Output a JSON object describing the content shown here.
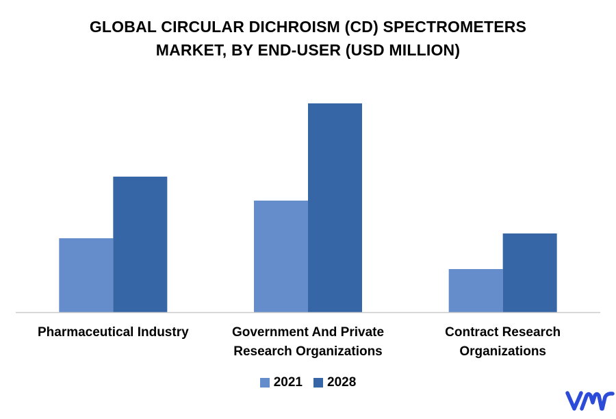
{
  "chart_data": {
    "type": "bar",
    "title_lines": [
      "GLOBAL CIRCULAR DICHROISM (CD) SPECTROMETERS",
      "MARKET, BY END-USER (USD MILLION)"
    ],
    "categories": [
      [
        "Pharmaceutical Industry"
      ],
      [
        "Government And Private",
        "Research Organizations"
      ],
      [
        "Contract Research",
        "Organizations"
      ]
    ],
    "series": [
      {
        "name": "2021",
        "color": "#658ccb",
        "values": [
          108,
          163,
          63
        ]
      },
      {
        "name": "2028",
        "color": "#3766a6",
        "values": [
          198,
          305,
          115
        ]
      }
    ],
    "ylim": [
      0,
      330
    ],
    "grid": false,
    "legend_position": "bottom-center"
  },
  "logo": {
    "icon": "vmr-logo-icon",
    "color": "#2c4bd8"
  }
}
